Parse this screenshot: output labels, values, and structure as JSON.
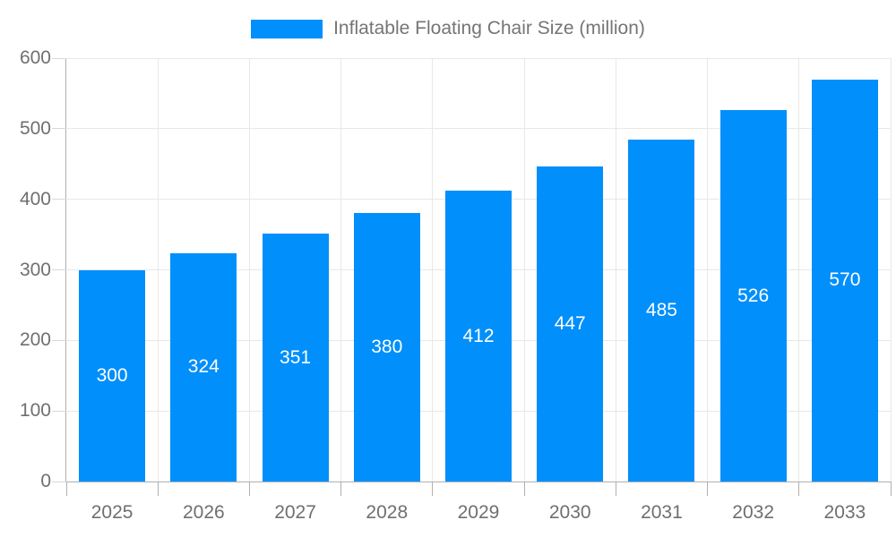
{
  "legend": {
    "label": "Inflatable Floating Chair Size (million)",
    "swatch_color": "#008FFB"
  },
  "colors": {
    "bar": "#008FFB",
    "axis_text": "#6f6f6f",
    "legend_text": "#757575",
    "grid_line": "#e8e8e8",
    "axis_line": "#b0b0b0",
    "value_label": "#ffffff",
    "background": "#ffffff"
  },
  "chart_data": {
    "type": "bar",
    "title": "Inflatable Floating Chair Size (million)",
    "categories": [
      "2025",
      "2026",
      "2027",
      "2028",
      "2029",
      "2030",
      "2031",
      "2032",
      "2033"
    ],
    "values": [
      300,
      324,
      351,
      380,
      412,
      447,
      485,
      526,
      570
    ],
    "xlabel": "",
    "ylabel": "",
    "ylim": [
      0,
      600
    ],
    "yticks": [
      0,
      100,
      200,
      300,
      400,
      500,
      600
    ],
    "grid": true,
    "legend_position": "top",
    "value_labels": "inside-center"
  }
}
